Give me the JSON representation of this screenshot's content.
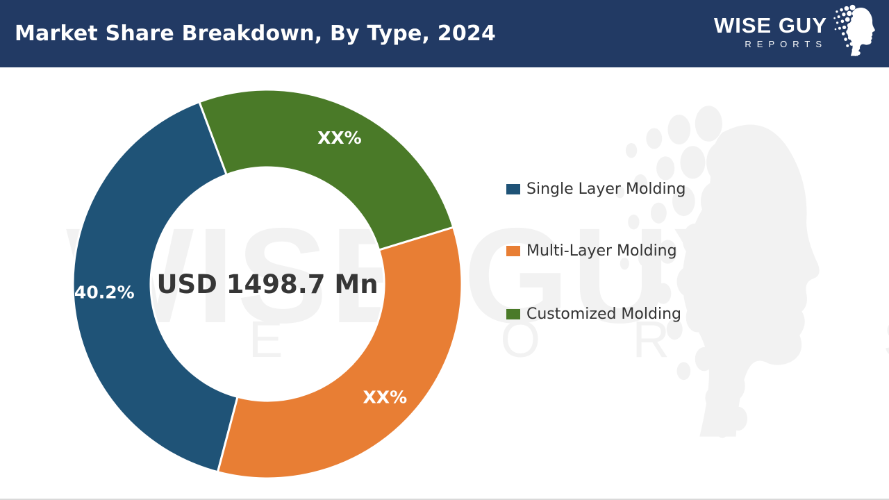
{
  "header": {
    "title": "Market Share Breakdown, By Type, 2024",
    "logo": {
      "wordmark": "WISE GUY",
      "subtext": "REPORTS"
    }
  },
  "watermark": {
    "line1": "WISE GUY",
    "line2": "R E P O R T S"
  },
  "chart_data": {
    "type": "pie",
    "subtype": "donut",
    "title": "Market Share Breakdown, By Type, 2024",
    "center_label": "USD 1498.7 Mn",
    "legend_position": "right",
    "start_angle_deg": 110.5,
    "direction": "counterclockwise",
    "inner_radius_ratio": 0.6,
    "segments": [
      {
        "label": "Single Layer Molding",
        "display_value": "40.2%",
        "value_pct": 40.2,
        "arc_deg": 144.7,
        "color": "#1F5377"
      },
      {
        "label": "Multi-Layer Molding",
        "display_value": "XX%",
        "value_pct": 33.8,
        "arc_deg": 121.8,
        "color": "#E87E34"
      },
      {
        "label": "Customized Molding",
        "display_value": "XX%",
        "value_pct": 26.0,
        "arc_deg": 93.5,
        "color": "#4A7A28"
      }
    ]
  },
  "colors": {
    "header_bg": "#223A64",
    "watermark": "#F2F2F2",
    "center_text": "#363636",
    "legend_text": "#333333",
    "bottom_line": "#D9D9D9"
  }
}
